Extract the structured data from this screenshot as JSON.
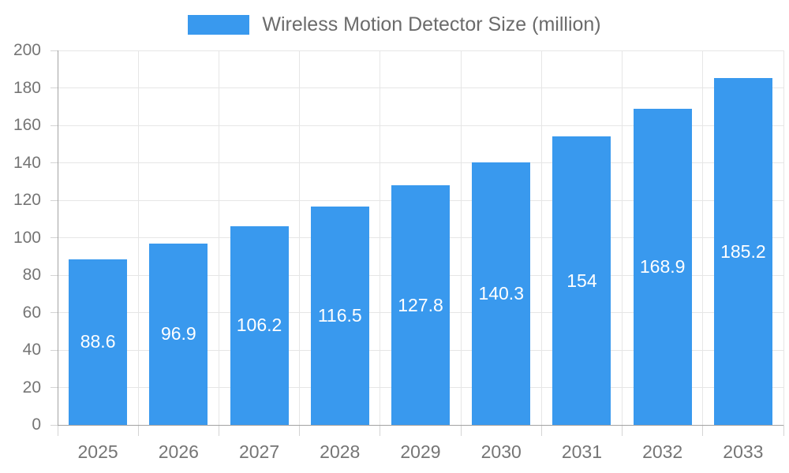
{
  "chart_data": {
    "type": "bar",
    "title": "Wireless Motion Detector Size (million)",
    "categories": [
      "2025",
      "2026",
      "2027",
      "2028",
      "2029",
      "2030",
      "2031",
      "2032",
      "2033"
    ],
    "series": [
      {
        "name": "Wireless Motion Detector Size (million)",
        "values": [
          88.6,
          96.9,
          106.2,
          116.5,
          127.8,
          140.3,
          154,
          168.9,
          185.2
        ]
      }
    ],
    "value_labels": [
      "88.6",
      "96.9",
      "106.2",
      "116.5",
      "127.8",
      "140.3",
      "154",
      "168.9",
      "185.2"
    ],
    "xlabel": "",
    "ylabel": "",
    "ylim": [
      0,
      200
    ],
    "ytick_step": 20,
    "ytick_labels": [
      "0",
      "20",
      "40",
      "60",
      "80",
      "100",
      "120",
      "140",
      "160",
      "180",
      "200"
    ],
    "grid": true,
    "legend_position": "top-center",
    "colors": {
      "bar": "#3999EE",
      "grid": "#E6E6E6",
      "axis": "#A3A3A3",
      "tick": "#D4D4D4",
      "axis_text": "#757575",
      "value_text": "#FFFFFF",
      "legend_text": "#6B6B6B"
    }
  }
}
